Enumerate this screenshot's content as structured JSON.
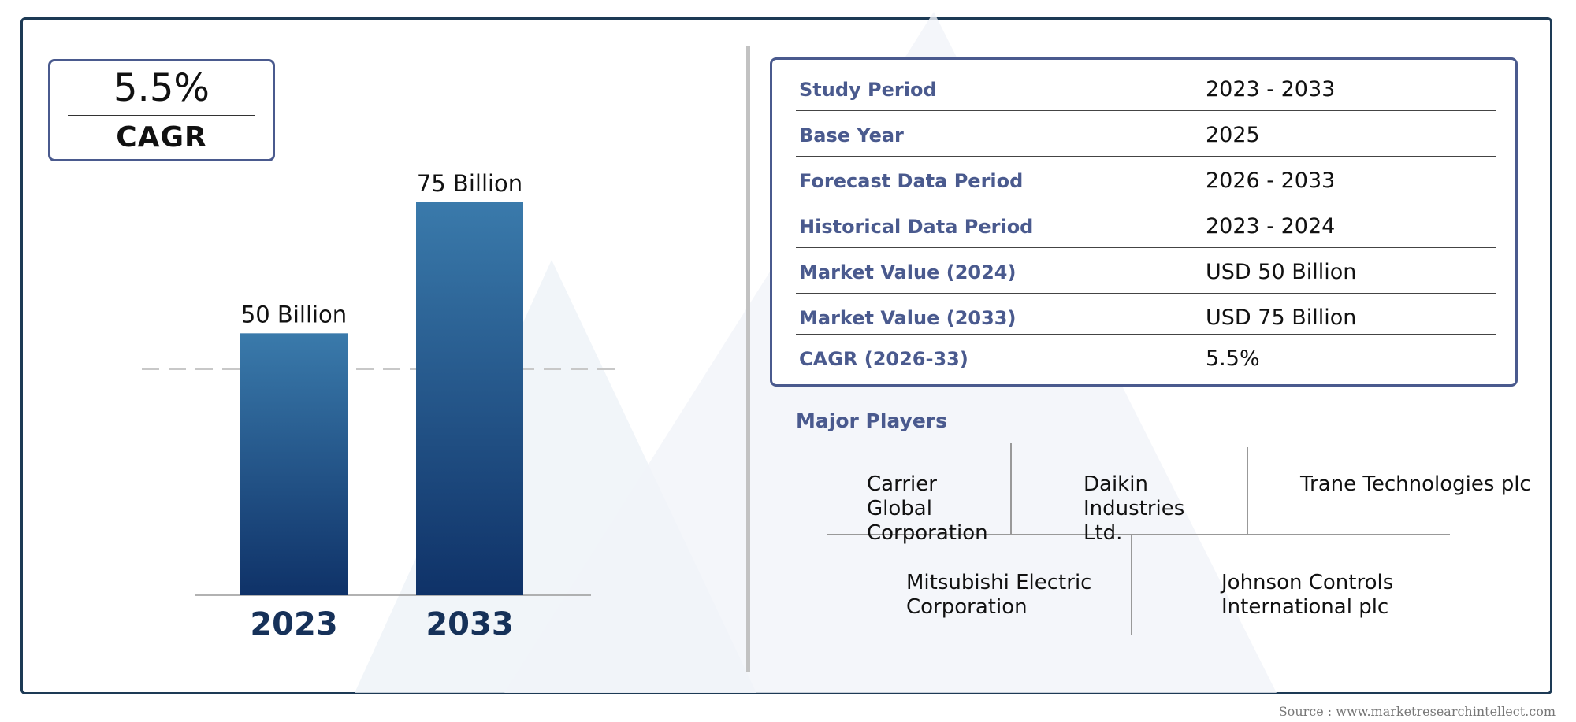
{
  "cagr_box": {
    "value": "5.5%",
    "label": "CAGR"
  },
  "chart_data": {
    "type": "bar",
    "categories": [
      "2023",
      "2033"
    ],
    "values": [
      50,
      75
    ],
    "data_labels": [
      "50 Billion",
      "75 Billion"
    ],
    "ylim": [
      0,
      75
    ],
    "grid": false,
    "colors": {
      "bar_top": "#3a7aab",
      "bar_bottom": "#0f3268"
    }
  },
  "info_table": {
    "rows": [
      {
        "key": "Study Period",
        "value": "2023 - 2033"
      },
      {
        "key": "Base Year",
        "value": "2025"
      },
      {
        "key": "Forecast Data Period",
        "value": "2026 - 2033"
      },
      {
        "key": "Historical Data Period",
        "value": "2023 - 2024"
      },
      {
        "key": "Market Value (2024)",
        "value": "USD 50 Billion"
      },
      {
        "key": "Market Value (2033)",
        "value": "USD 75 Billion"
      },
      {
        "key": "CAGR (2026-33)",
        "value": "5.5%"
      }
    ]
  },
  "major_players": {
    "title": "Major Players",
    "players": [
      [
        "Carrier",
        "Global",
        "Corporation"
      ],
      [
        "Daikin",
        "Industries",
        "Ltd."
      ],
      [
        "Trane Technologies plc"
      ],
      [
        "Mitsubishi Electric",
        "Corporation"
      ],
      [
        "Johnson Controls",
        "International plc"
      ]
    ]
  },
  "source": "Source : www.marketresearchintellect.com"
}
